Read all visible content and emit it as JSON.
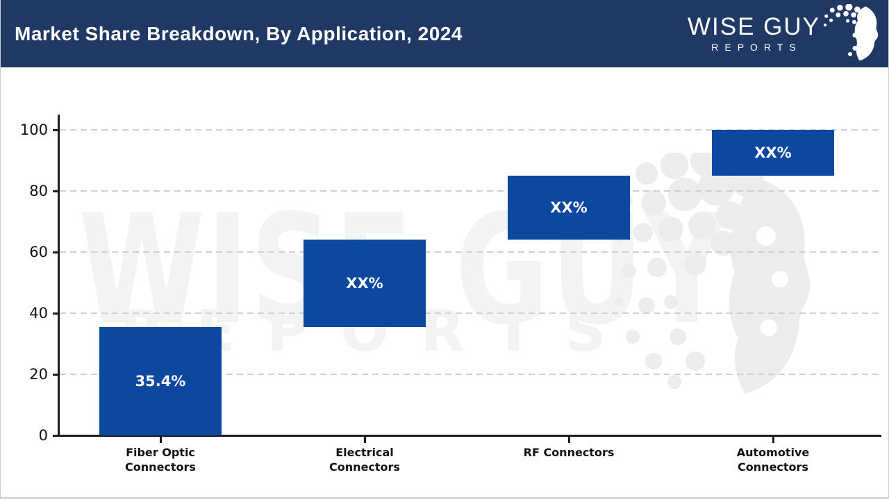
{
  "header": {
    "title": "Market Share Breakdown, By Application, 2024",
    "logo_line1": "WISE GUY",
    "logo_line2": "REPORTS"
  },
  "watermark": {
    "line1": "WISE GUY",
    "line2": "REPORTS"
  },
  "colors": {
    "header_bg": "#1f3864",
    "bar": "#0c47a0",
    "axis": "#1c1c1c",
    "gridline": "#cfcfcf",
    "card_border": "#cccccc",
    "bar_label": "#ffffff"
  },
  "chart_data": {
    "type": "bar",
    "variant": "waterfall",
    "title": "Market Share Breakdown, By Application, 2024",
    "categories": [
      "Fiber Optic Connectors",
      "Electrical Connectors",
      "RF Connectors",
      "Automotive Connectors"
    ],
    "bars": [
      {
        "category": "Fiber Optic Connectors",
        "lines": [
          "Fiber Optic",
          "Connectors"
        ],
        "start": 0,
        "end": 35.4,
        "label": "35.4%"
      },
      {
        "category": "Electrical Connectors",
        "lines": [
          "Electrical",
          "Connectors"
        ],
        "start": 35.4,
        "end": 64,
        "label": "XX%"
      },
      {
        "category": "RF Connectors",
        "lines": [
          "RF Connectors"
        ],
        "start": 64,
        "end": 85,
        "label": "XX%"
      },
      {
        "category": "Automotive Connectors",
        "lines": [
          "Automotive",
          "Connectors"
        ],
        "start": 85,
        "end": 100,
        "label": "XX%"
      }
    ],
    "xlabel": "",
    "ylabel": "",
    "ylim": [
      0,
      100
    ],
    "y_ticks": [
      0,
      20,
      40,
      60,
      80,
      100
    ],
    "grid": "horizontal-dashed",
    "legend": "none",
    "bar_color": "#0c47a0",
    "bar_label_color": "#ffffff"
  }
}
